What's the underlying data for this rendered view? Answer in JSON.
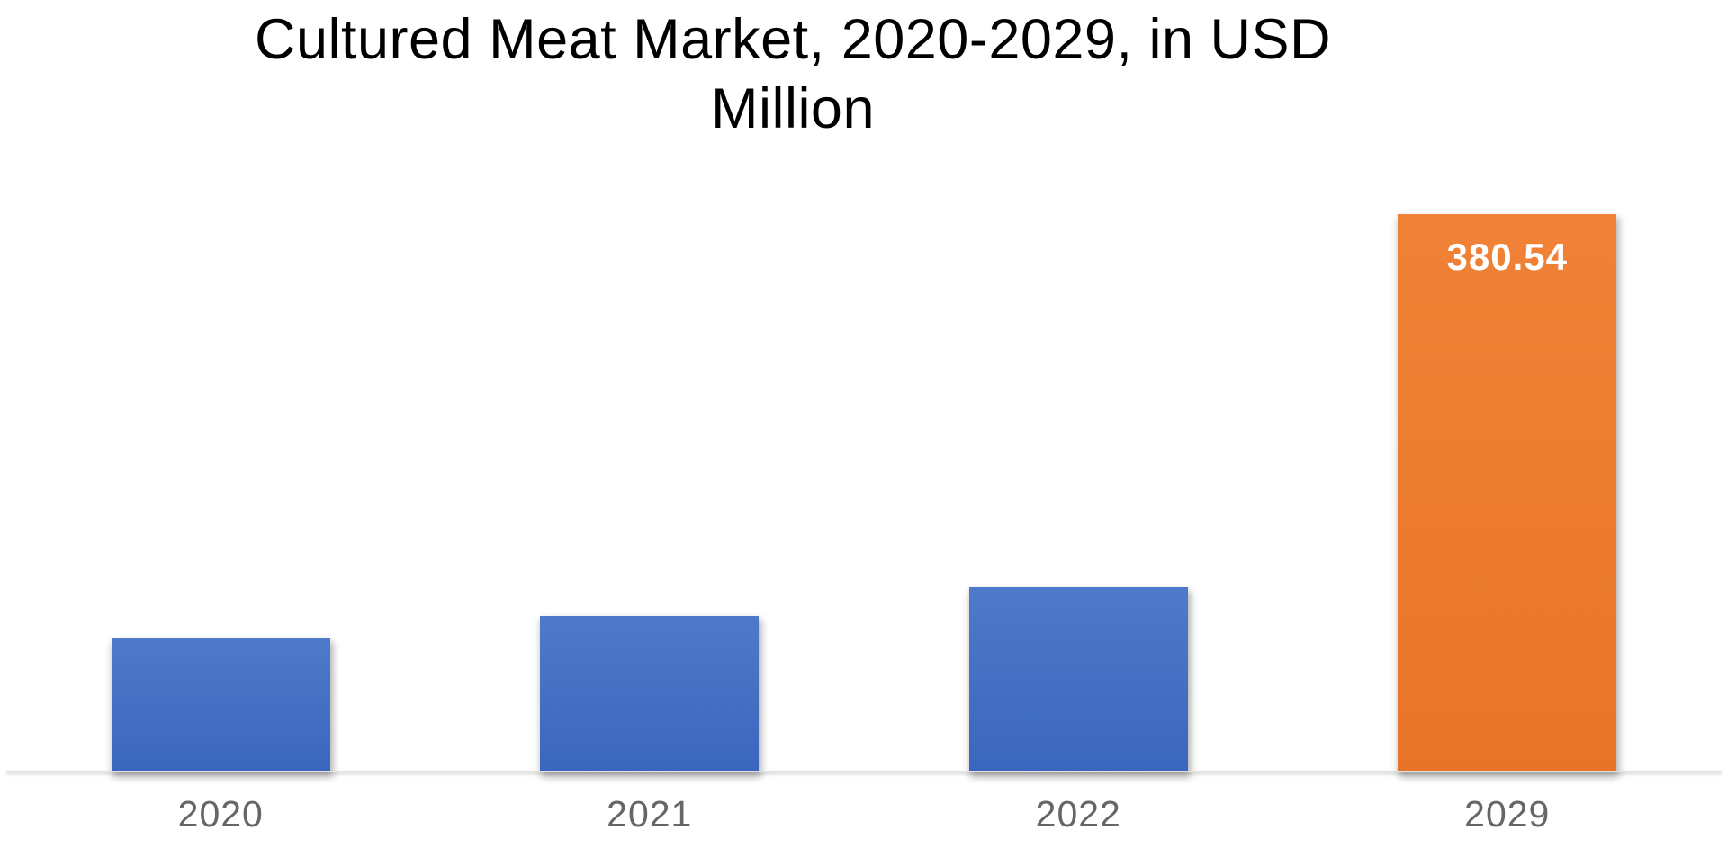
{
  "chart_data": {
    "type": "bar",
    "title": "Cultured Meat Market, 2020-2029, in USD Million",
    "title_lines": [
      "Cultured Meat Market, 2020-2029, in USD",
      "Million"
    ],
    "categories": [
      "2020",
      "2021",
      "2022",
      "2029"
    ],
    "values": [
      91,
      106,
      126,
      380.54
    ],
    "data_labels": [
      null,
      null,
      null,
      "380.54"
    ],
    "highlight_index": 3,
    "xlabel": "",
    "ylabel": "",
    "ylim": [
      0,
      400
    ],
    "grid": false,
    "legend": false,
    "colors": {
      "bar_default": "#4472C4",
      "bar_default_gradient_top": "#4F7ACA",
      "bar_default_gradient_bottom": "#3A66BD",
      "bar_highlight": "#ED7D31",
      "bar_highlight_gradient_top": "#F08237",
      "bar_highlight_gradient_bottom": "#E87527",
      "data_label_text": "#FFFFFF",
      "category_label_text": "#666666",
      "title_text": "#000000",
      "axis_line": "#E2E2E2"
    }
  }
}
